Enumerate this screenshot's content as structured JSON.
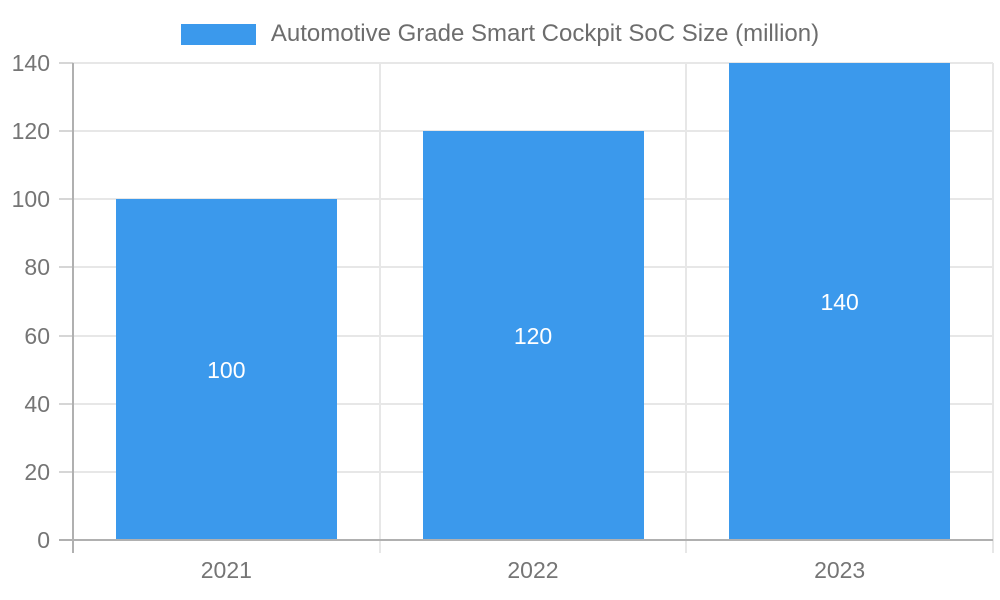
{
  "legend": {
    "label": "Automotive Grade Smart Cockpit SoC Size (million)"
  },
  "chart_data": {
    "type": "bar",
    "title": "Automotive Grade Smart Cockpit SoC Size (million)",
    "categories": [
      "2021",
      "2022",
      "2023"
    ],
    "values": [
      100,
      120,
      140
    ],
    "data_labels": [
      "100",
      "120",
      "140"
    ],
    "series": [
      {
        "name": "Automotive Grade Smart Cockpit SoC Size (million)",
        "values": [
          100,
          120,
          140
        ]
      }
    ],
    "xlabel": "",
    "ylabel": "",
    "ylim": [
      0,
      140
    ],
    "ytick_step": 20,
    "yticks": [
      0,
      20,
      40,
      60,
      80,
      100,
      120,
      140
    ],
    "grid": true,
    "legend_position": "top",
    "colors": {
      "bar": "#3B99EC",
      "gridline": "#e7e7e7",
      "axis_line": "#b0b0b0",
      "axis_label": "#757575",
      "legend_text": "#6d6d6d",
      "data_label": "#ffffff",
      "background": "#ffffff"
    }
  }
}
